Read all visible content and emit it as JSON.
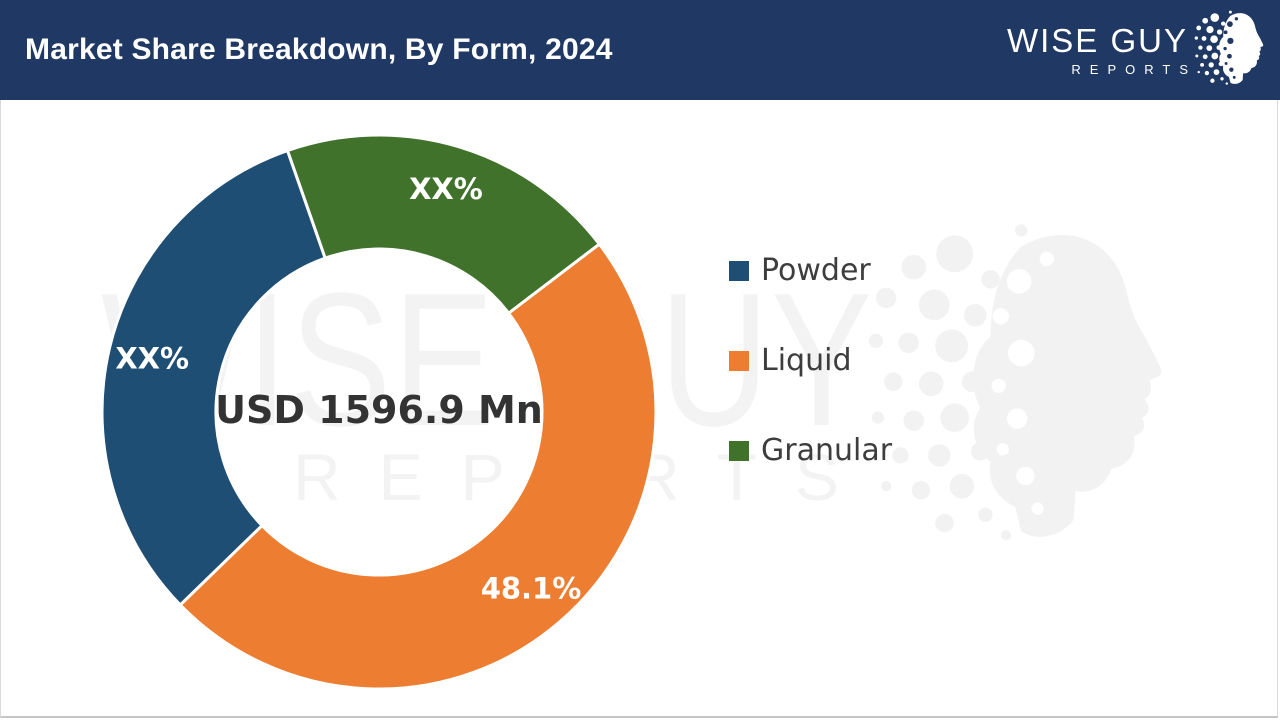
{
  "header": {
    "title": "Market Share Breakdown, By Form, 2024",
    "logo": {
      "line1": "WISE GUY",
      "line2": "REPORTS"
    }
  },
  "watermark": {
    "line1": "WISE GUY",
    "line2": "REPORTS"
  },
  "colors": {
    "header_bg": "#1F3864",
    "powder_blue": "#1F4E74",
    "liquid_orange": "#ED7D31",
    "granular_green": "#41722B",
    "center_text": "#333333",
    "legend_text": "#3d3d3d",
    "watermark_gray": "#f3f3f3"
  },
  "chart_data": {
    "type": "pie",
    "subtype": "donut",
    "title": "Market Share Breakdown, By Form, 2024",
    "center_label": "USD 1596.9 Mn",
    "legend_position": "right",
    "start_angle_deg": -19.3,
    "slices": [
      {
        "name": "Powder",
        "value_pct": 31.9,
        "displayed_label": "XX%",
        "color": "#1F4E74"
      },
      {
        "name": "Liquid",
        "value_pct": 48.1,
        "displayed_label": "48.1%",
        "color": "#ED7D31"
      },
      {
        "name": "Granular",
        "value_pct": 20.0,
        "displayed_label": "XX%",
        "color": "#41722B"
      }
    ]
  }
}
